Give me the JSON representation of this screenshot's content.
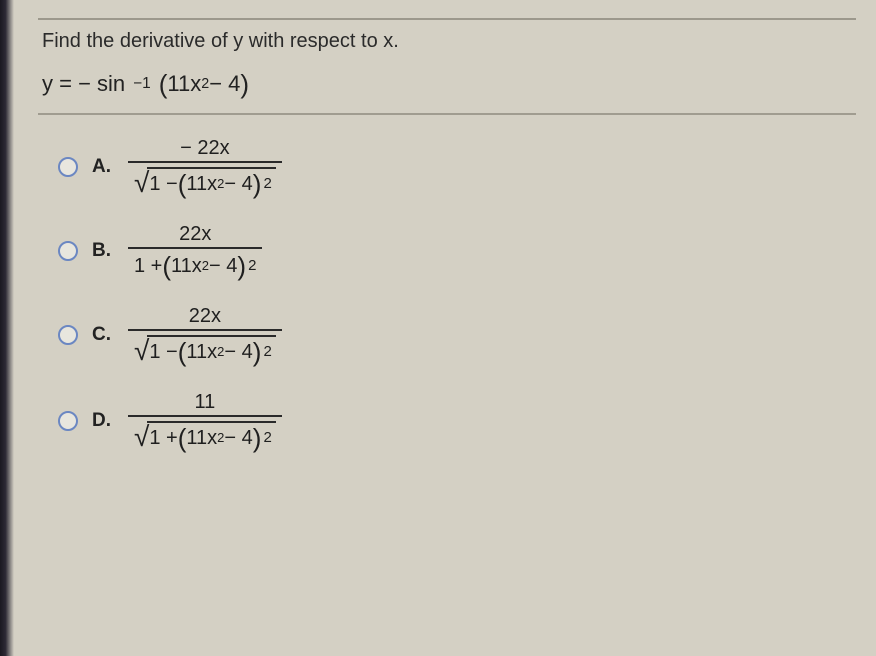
{
  "question": "Find the derivative of y with respect to x.",
  "equation": {
    "lhs": "y = − sin",
    "exp": "−1",
    "arg_open": "(",
    "arg_inner": "11x",
    "arg_exp": "2",
    "arg_tail": " − 4",
    "arg_close": ")"
  },
  "options": [
    {
      "letter": "A.",
      "numerator": "− 22x",
      "denom_type": "sqrt",
      "denom_prefix": "1 − ",
      "denom_inner": "11x",
      "denom_exp": "2",
      "denom_tail": " − 4",
      "outer_exp": "2"
    },
    {
      "letter": "B.",
      "numerator": "22x",
      "denom_type": "plain",
      "denom_prefix": "1 + ",
      "denom_inner": "11x",
      "denom_exp": "2",
      "denom_tail": " − 4",
      "outer_exp": "2"
    },
    {
      "letter": "C.",
      "numerator": "22x",
      "denom_type": "sqrt",
      "denom_prefix": "1 − ",
      "denom_inner": "11x",
      "denom_exp": "2",
      "denom_tail": " − 4",
      "outer_exp": "2"
    },
    {
      "letter": "D.",
      "numerator": "11",
      "denom_type": "sqrt",
      "denom_prefix": "1 + ",
      "denom_inner": "11x",
      "denom_exp": "2",
      "denom_tail": " − 4",
      "outer_exp": "2"
    }
  ],
  "colors": {
    "background": "#d4d0c4",
    "text": "#2b2b2b",
    "rule": "#9c988c",
    "radio_border": "#6b87c2",
    "shadow": "#1a1820"
  }
}
